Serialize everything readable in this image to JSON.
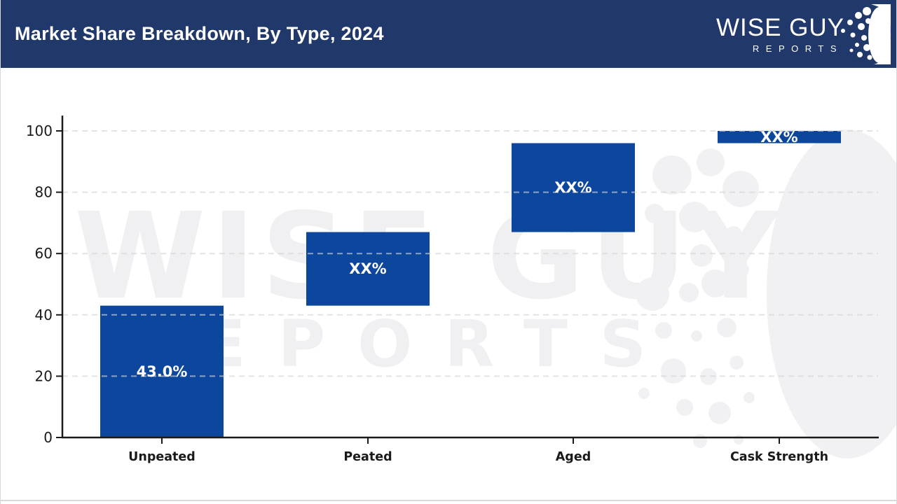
{
  "header": {
    "title": "Market Share Breakdown, By Type, 2024",
    "logo": {
      "line1": "WISE GUY",
      "line2": "REPORTS"
    }
  },
  "watermark": {
    "line1": "WISE GUY",
    "line2": "REPORTS"
  },
  "colors": {
    "header_bg": "#21386b",
    "bar": "#0c479d",
    "grid": "#d4d4d4",
    "axis": "#1a1a1a",
    "bar_label": "#ffffff",
    "watermark": "#f0f0f2"
  },
  "chart_data": {
    "type": "bar",
    "subtype": "waterfall",
    "title": "Market Share Breakdown, By Type, 2024",
    "xlabel": "",
    "ylabel": "",
    "categories": [
      "Unpeated",
      "Peated",
      "Aged",
      "Cask Strength"
    ],
    "segments": [
      {
        "category": "Unpeated",
        "start": 0,
        "end": 43,
        "label": "43.0%"
      },
      {
        "category": "Peated",
        "start": 43,
        "end": 67,
        "label": "XX%"
      },
      {
        "category": "Aged",
        "start": 67,
        "end": 96,
        "label": "XX%"
      },
      {
        "category": "Cask Strength",
        "start": 96,
        "end": 100,
        "label": "XX%"
      }
    ],
    "cumulative_totals": [
      43,
      67,
      96,
      100
    ],
    "yticks": [
      0,
      20,
      40,
      60,
      80,
      100
    ],
    "ylim": [
      0,
      105
    ],
    "grid": "dashed-horizontal",
    "legend": "none"
  }
}
